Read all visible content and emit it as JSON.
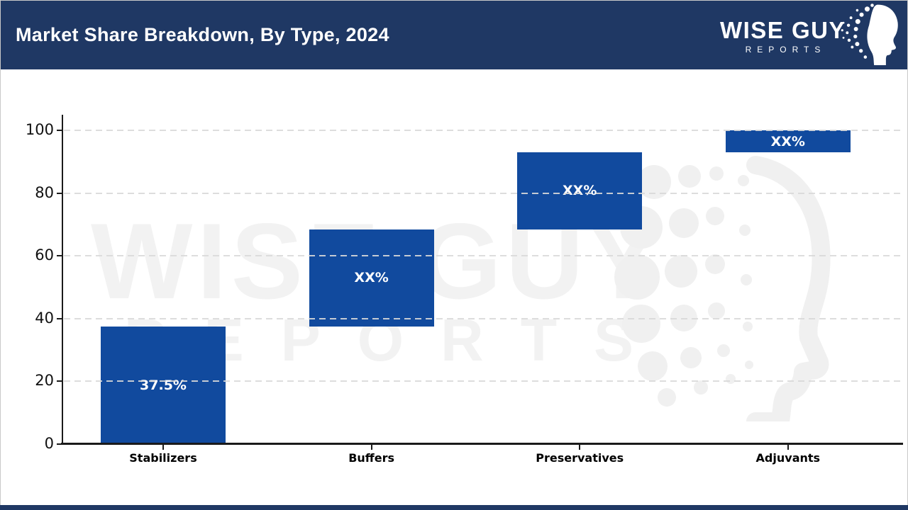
{
  "header": {
    "title": "Market Share Breakdown, By Type, 2024",
    "logo": {
      "line1": "WISE GUY",
      "line2": "REPORTS"
    }
  },
  "watermark": {
    "line1": "WISE GUY",
    "line2": "REPORTS"
  },
  "chart_data": {
    "type": "bar",
    "subtype": "waterfall",
    "title": "Market Share Breakdown, By Type, 2024",
    "categories": [
      "Stabilizers",
      "Buffers",
      "Preservatives",
      "Adjuvants"
    ],
    "segments": [
      {
        "category": "Stabilizers",
        "start": 0,
        "end": 37.5,
        "label": "37.5%"
      },
      {
        "category": "Buffers",
        "start": 37.5,
        "end": 68.5,
        "label": "XX%"
      },
      {
        "category": "Preservatives",
        "start": 68.5,
        "end": 93,
        "label": "XX%"
      },
      {
        "category": "Adjuvants",
        "start": 93,
        "end": 100,
        "label": "XX%"
      }
    ],
    "xlabel": "",
    "ylabel": "",
    "ylim": [
      0,
      100
    ],
    "yticks": [
      0,
      20,
      40,
      60,
      80,
      100
    ],
    "grid": "horizontal dashed, drawn over bars",
    "legend": "none",
    "bar_color": "#114a9e",
    "bar_label_color": "#ffffff"
  },
  "colors": {
    "header_bg": "#1f3864",
    "bar": "#114a9e",
    "grid": "#d9d9d9",
    "axis": "#1a1a1a",
    "watermark": "#f2f2f2",
    "border": "#c9c9c9"
  }
}
